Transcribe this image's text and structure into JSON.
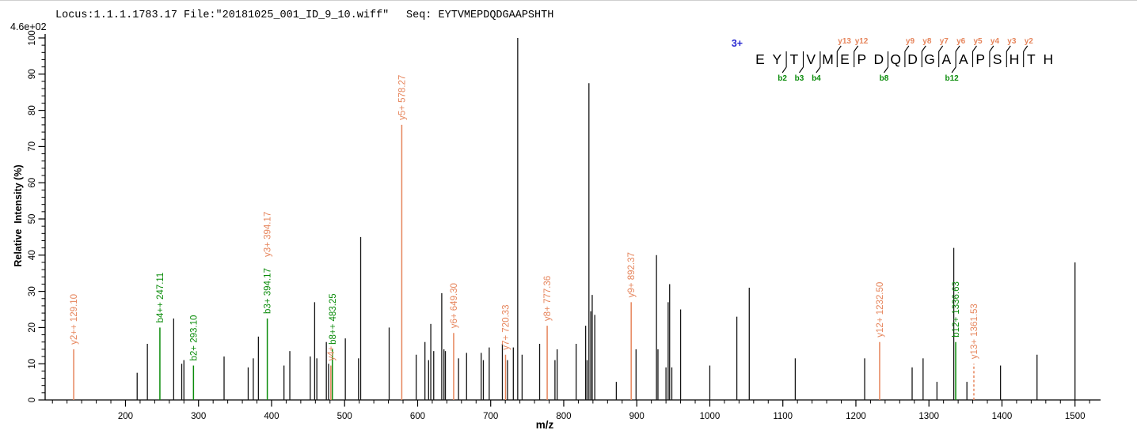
{
  "header": {
    "locus_file": "Locus:1.1.1.1783.17 File:\"20181025_001_ID_9_10.wiff\"",
    "seq_label": "Seq: ",
    "sequence": "EYTVMEPDQDGAAPSHTH",
    "max_intensity_label": "4.6e+02"
  },
  "colors": {
    "header_blue": "#2323bb",
    "charge_blue": "#2525d0",
    "y_ion": "#e6855c",
    "b_ion": "#0b8c0b",
    "peak_black": "#141414",
    "axis": "#000000",
    "text": "#000000"
  },
  "sequence_annotation": {
    "charge": "3+",
    "residues": [
      {
        "aa": "E"
      },
      {
        "aa": "Y",
        "b": "b2"
      },
      {
        "aa": "T",
        "b": "b3"
      },
      {
        "aa": "V",
        "b": "b4"
      },
      {
        "aa": "M",
        "y": "y13"
      },
      {
        "aa": "E",
        "y": "y12"
      },
      {
        "aa": "P"
      },
      {
        "aa": "D",
        "b": "b8"
      },
      {
        "aa": "Q",
        "y": "y9"
      },
      {
        "aa": "D",
        "y": "y8"
      },
      {
        "aa": "G",
        "y": "y7"
      },
      {
        "aa": "A",
        "y": "y6",
        "b": "b12"
      },
      {
        "aa": "A",
        "y": "y5"
      },
      {
        "aa": "P",
        "y": "y4"
      },
      {
        "aa": "S",
        "y": "y3"
      },
      {
        "aa": "H",
        "y": "y2"
      },
      {
        "aa": "T"
      },
      {
        "aa": "H"
      }
    ]
  },
  "chart_data": {
    "type": "bar",
    "chart_kind": "ms2-fragment-ion-spectrum",
    "title": "",
    "xlabel": "m/z",
    "ylabel": "Relative  Intensity (%)",
    "x_domain": [
      90,
      1535
    ],
    "y_domain": [
      0,
      100
    ],
    "x_major_ticks": [
      200,
      300,
      400,
      500,
      600,
      700,
      800,
      900,
      1000,
      1100,
      1200,
      1300,
      1400,
      1500
    ],
    "x_minor_step": 20,
    "x_minor_range": [
      100,
      1520
    ],
    "y_major_ticks": [
      0,
      10,
      20,
      30,
      40,
      50,
      60,
      70,
      80,
      90,
      100
    ],
    "y_minor_step": 2,
    "grid": false,
    "legend": "none",
    "peaks": [
      {
        "mz": 129.1,
        "pct": 14,
        "ion": "y",
        "labels": [
          {
            "text": "y2++ 129.10",
            "ion": "y"
          }
        ]
      },
      {
        "mz": 216,
        "pct": 7.5
      },
      {
        "mz": 230,
        "pct": 15.5
      },
      {
        "mz": 247.11,
        "pct": 20,
        "ion": "b",
        "labels": [
          {
            "text": "b4++ 247.11",
            "ion": "b"
          }
        ]
      },
      {
        "mz": 266,
        "pct": 22.5
      },
      {
        "mz": 277,
        "pct": 10
      },
      {
        "mz": 280,
        "pct": 11
      },
      {
        "mz": 293.1,
        "pct": 9.5,
        "ion": "b",
        "labels": [
          {
            "text": "b2+ 293.10",
            "ion": "b"
          }
        ]
      },
      {
        "mz": 335,
        "pct": 12
      },
      {
        "mz": 368,
        "pct": 9
      },
      {
        "mz": 375,
        "pct": 11.5
      },
      {
        "mz": 382,
        "pct": 17.5
      },
      {
        "mz": 394.17,
        "pct": 22.5,
        "ion": "b",
        "labels": [
          {
            "text": "b3+ 394.17",
            "ion": "b"
          },
          {
            "text": "y3+ 394.17",
            "ion": "y"
          }
        ]
      },
      {
        "mz": 417,
        "pct": 9.5
      },
      {
        "mz": 425,
        "pct": 13.5
      },
      {
        "mz": 453,
        "pct": 12
      },
      {
        "mz": 459,
        "pct": 27
      },
      {
        "mz": 462,
        "pct": 11.5
      },
      {
        "mz": 475,
        "pct": 16
      },
      {
        "mz": 478,
        "pct": 10
      },
      {
        "mz": 481.2,
        "pct": 9.5,
        "ion": "y",
        "labels": [
          {
            "text": "y4+",
            "ion": "y"
          }
        ]
      },
      {
        "mz": 483.25,
        "pct": 14,
        "ion": "b",
        "labels": [
          {
            "text": "b8++ 483.25",
            "ion": "b"
          }
        ]
      },
      {
        "mz": 501,
        "pct": 17
      },
      {
        "mz": 519,
        "pct": 11.5
      },
      {
        "mz": 522,
        "pct": 45
      },
      {
        "mz": 561,
        "pct": 20
      },
      {
        "mz": 578.27,
        "pct": 76,
        "ion": "y",
        "labels": [
          {
            "text": "y5+ 578.27",
            "ion": "y"
          }
        ]
      },
      {
        "mz": 598,
        "pct": 12.5
      },
      {
        "mz": 610,
        "pct": 16
      },
      {
        "mz": 615,
        "pct": 11
      },
      {
        "mz": 618,
        "pct": 21
      },
      {
        "mz": 622,
        "pct": 13.5
      },
      {
        "mz": 633,
        "pct": 29.5
      },
      {
        "mz": 636,
        "pct": 14
      },
      {
        "mz": 638,
        "pct": 13.5
      },
      {
        "mz": 649.3,
        "pct": 18.5,
        "ion": "y",
        "labels": [
          {
            "text": "y6+ 649.30",
            "ion": "y"
          }
        ]
      },
      {
        "mz": 656,
        "pct": 11.5
      },
      {
        "mz": 667,
        "pct": 13
      },
      {
        "mz": 687,
        "pct": 13
      },
      {
        "mz": 690,
        "pct": 11
      },
      {
        "mz": 698,
        "pct": 14.5
      },
      {
        "mz": 716,
        "pct": 15.5
      },
      {
        "mz": 720.33,
        "pct": 12.5,
        "ion": "y",
        "labels": [
          {
            "text": "y7+ 720.33",
            "ion": "y"
          }
        ]
      },
      {
        "mz": 723,
        "pct": 11
      },
      {
        "mz": 731,
        "pct": 14.5
      },
      {
        "mz": 737,
        "pct": 100
      },
      {
        "mz": 743,
        "pct": 12.5
      },
      {
        "mz": 767,
        "pct": 15.5
      },
      {
        "mz": 777.36,
        "pct": 20.5,
        "ion": "y",
        "labels": [
          {
            "text": "y8+ 777.36",
            "ion": "y"
          }
        ]
      },
      {
        "mz": 788,
        "pct": 11
      },
      {
        "mz": 791,
        "pct": 14
      },
      {
        "mz": 817,
        "pct": 15.5
      },
      {
        "mz": 830,
        "pct": 20.5
      },
      {
        "mz": 832,
        "pct": 11
      },
      {
        "mz": 834.5,
        "pct": 87.5
      },
      {
        "mz": 837,
        "pct": 24.5
      },
      {
        "mz": 839,
        "pct": 29
      },
      {
        "mz": 842.5,
        "pct": 23.5
      },
      {
        "mz": 872,
        "pct": 5
      },
      {
        "mz": 892.37,
        "pct": 27,
        "ion": "y",
        "labels": [
          {
            "text": "y9+ 892.37",
            "ion": "y"
          }
        ]
      },
      {
        "mz": 899,
        "pct": 14
      },
      {
        "mz": 927,
        "pct": 40
      },
      {
        "mz": 929,
        "pct": 14
      },
      {
        "mz": 940,
        "pct": 9
      },
      {
        "mz": 943,
        "pct": 27
      },
      {
        "mz": 945,
        "pct": 32
      },
      {
        "mz": 948,
        "pct": 9
      },
      {
        "mz": 960,
        "pct": 25
      },
      {
        "mz": 1000,
        "pct": 9.5
      },
      {
        "mz": 1037,
        "pct": 23
      },
      {
        "mz": 1054,
        "pct": 31
      },
      {
        "mz": 1117,
        "pct": 11.5
      },
      {
        "mz": 1212,
        "pct": 11.5
      },
      {
        "mz": 1232.5,
        "pct": 16,
        "ion": "y",
        "labels": [
          {
            "text": "y12+ 1232.50",
            "ion": "y"
          }
        ]
      },
      {
        "mz": 1277,
        "pct": 9
      },
      {
        "mz": 1292,
        "pct": 11.5
      },
      {
        "mz": 1311,
        "pct": 5
      },
      {
        "mz": 1334,
        "pct": 42
      },
      {
        "mz": 1336.63,
        "pct": 16,
        "ion": "b",
        "labels": [
          {
            "text": "b12+ 1336.63",
            "ion": "b"
          }
        ]
      },
      {
        "mz": 1352,
        "pct": 5
      },
      {
        "mz": 1361.53,
        "pct": 10,
        "ion": "y",
        "dashed": true,
        "labels": [
          {
            "text": "y13+ 1361.53",
            "ion": "y"
          }
        ]
      },
      {
        "mz": 1398,
        "pct": 9.5
      },
      {
        "mz": 1448,
        "pct": 12.5
      },
      {
        "mz": 1500,
        "pct": 38
      }
    ]
  }
}
